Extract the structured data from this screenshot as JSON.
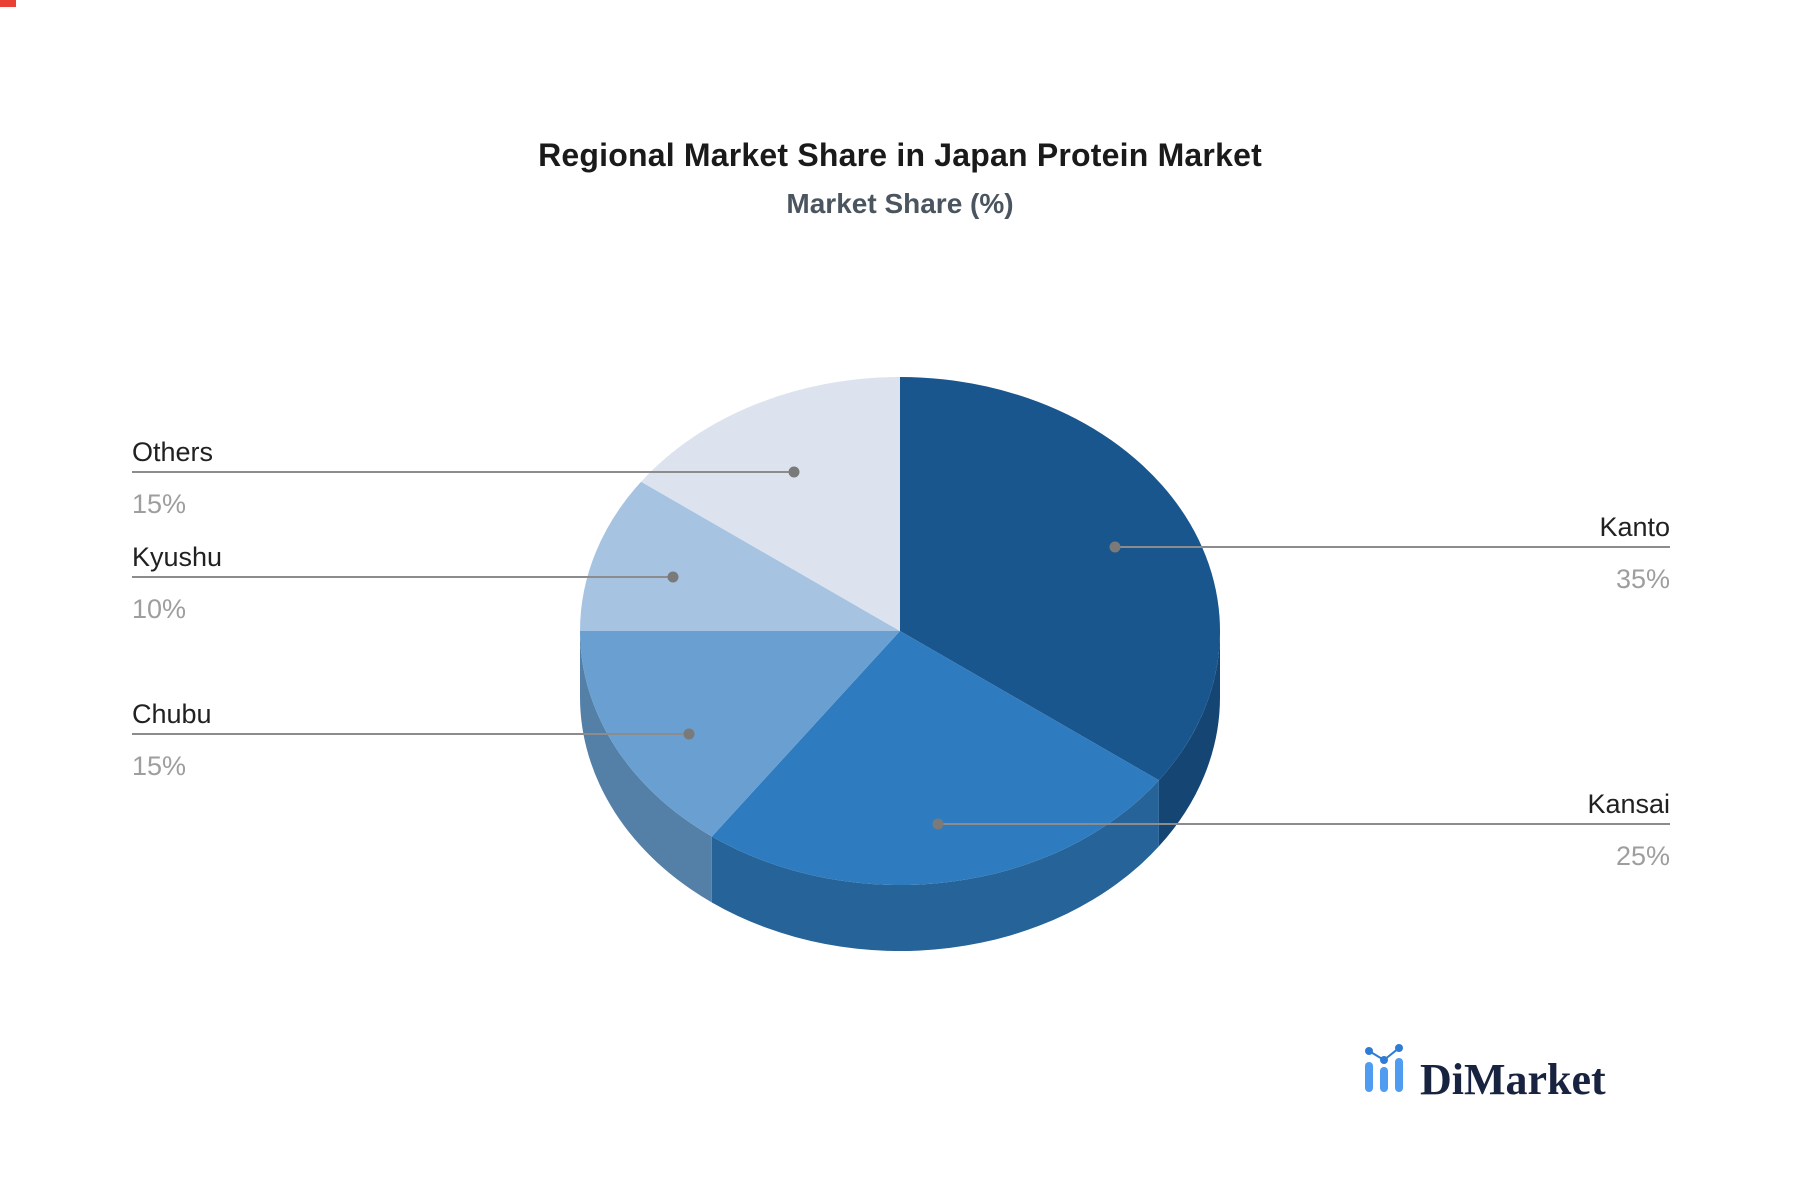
{
  "header": {
    "title": "Regional Market Share in Japan Protein Market",
    "subtitle": "Market Share (%)",
    "title_color": "#1a1a1a",
    "subtitle_color": "#4a5560"
  },
  "chart_data": {
    "type": "pie",
    "title": "Regional Market Share in Japan Protein Market",
    "subtitle": "Market Share (%)",
    "unit": "%",
    "style": "3d-pie",
    "start_angle_deg_from_top": 0,
    "clockwise": true,
    "series": [
      {
        "label": "Kanto",
        "value": 35,
        "pct_label": "35%",
        "color": "#1a568e",
        "label_side": "right"
      },
      {
        "label": "Kansai",
        "value": 25,
        "pct_label": "25%",
        "color": "#2e7cbf",
        "label_side": "right"
      },
      {
        "label": "Chubu",
        "value": 15,
        "pct_label": "15%",
        "color": "#69a0d1",
        "label_side": "left"
      },
      {
        "label": "Kyushu",
        "value": 10,
        "pct_label": "10%",
        "color": "#a6c3e1",
        "label_side": "left"
      },
      {
        "label": "Others",
        "value": 15,
        "pct_label": "15%",
        "color": "#dce3ef",
        "label_side": "left"
      }
    ],
    "label_name_color": "#212121",
    "label_pct_color": "#9e9e9e",
    "leader_line_color": "#8c8c8c",
    "leader_dot_color": "#7a7a7a",
    "legend": "none"
  },
  "logo": {
    "text": "DiMarket",
    "text_color": "#182340",
    "icon": "bar-line-chart-icon",
    "bar_color": "#4f9cf0",
    "line_dot_color": "#2f7cd6"
  },
  "artifact": {
    "color": "#e94235"
  }
}
